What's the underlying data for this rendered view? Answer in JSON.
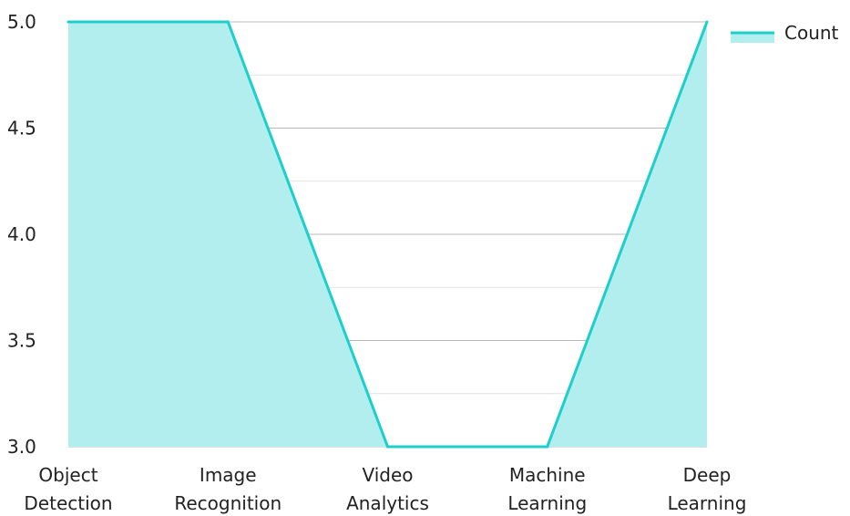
{
  "chart_data": {
    "type": "area",
    "categories": [
      [
        "Object",
        "Detection"
      ],
      [
        "Image",
        "Recognition"
      ],
      [
        "Video",
        "Analytics"
      ],
      [
        "Machine",
        "Learning"
      ],
      [
        "Deep",
        "Learning"
      ]
    ],
    "series": [
      {
        "name": "Count",
        "values": [
          5,
          5,
          3,
          3,
          5
        ]
      }
    ],
    "ylim": [
      3.0,
      5.0
    ],
    "y_ticks": [
      "3.0",
      "3.5",
      "4.0",
      "4.5",
      "5.0"
    ],
    "grid": true,
    "legend": "top-right",
    "colors": {
      "line": "#1ccfcc",
      "fill": "#b2eeed",
      "grid_major": "#b8b8b8",
      "grid_minor": "#e2e2e2"
    }
  }
}
